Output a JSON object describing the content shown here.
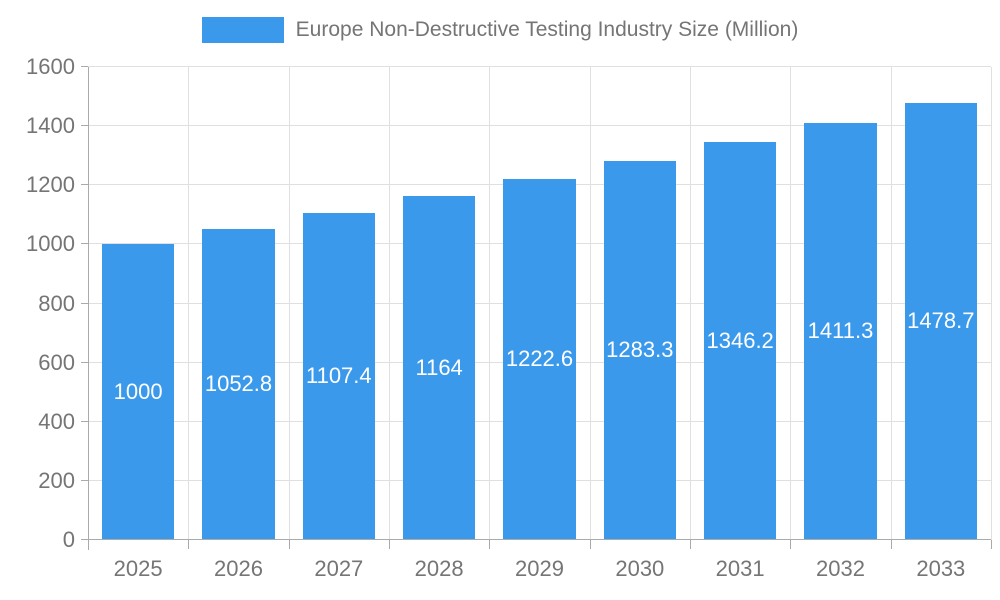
{
  "chart_data": {
    "type": "bar",
    "title": "Europe Non-Destructive Testing Industry Size (Million)",
    "xlabel": "",
    "ylabel": "",
    "categories": [
      "2025",
      "2026",
      "2027",
      "2028",
      "2029",
      "2030",
      "2031",
      "2032",
      "2033"
    ],
    "values": [
      1000,
      1052.8,
      1107.4,
      1164,
      1222.6,
      1283.3,
      1346.2,
      1411.3,
      1478.7
    ],
    "value_labels": [
      "1000",
      "1052.8",
      "1107.4",
      "1164",
      "1222.6",
      "1283.3",
      "1346.2",
      "1411.3",
      "1478.7"
    ],
    "ylim": [
      0,
      1600
    ],
    "yticks": [
      0,
      200,
      400,
      600,
      800,
      1000,
      1200,
      1400,
      1600
    ],
    "grid": true,
    "legend_position": "top",
    "colors": {
      "bar": "#3b99ec",
      "bar_value_label": "#ffffff",
      "axis_text": "#757575",
      "legend_text": "#757575",
      "grid_line": "#e0e0e0",
      "axis_line": "#aaaaaa"
    }
  }
}
